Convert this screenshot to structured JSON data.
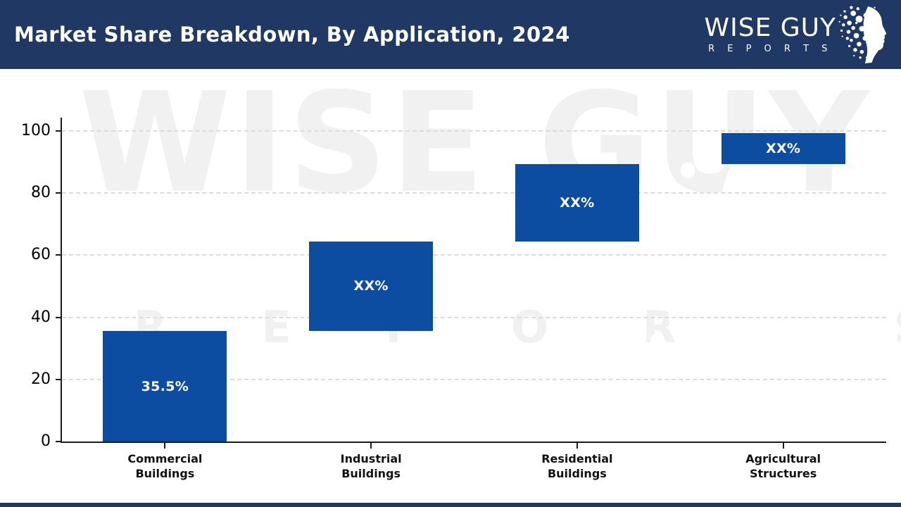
{
  "header": {
    "title": "Market Share Breakdown, By Application, 2024",
    "logo": {
      "line1": "WISE GUY",
      "line2": "R E P O R T S"
    }
  },
  "watermark": {
    "line1": "WISE GUY",
    "line2": "R E P O R T S"
  },
  "colors": {
    "header_navy": "#1F3864",
    "bar_blue": "#0C4DA2",
    "gridline": "#dcdcdc",
    "axis": "#1a1a1a",
    "watermark_grey": "#f1f1f1",
    "bar_label_text": "#ffffff"
  },
  "chart_data": {
    "type": "bar",
    "subtype": "waterfall-floating-bars",
    "title": "Market Share Breakdown, By Application, 2024",
    "xlabel": "",
    "ylabel": "",
    "ylim": [
      0,
      104
    ],
    "yticks": [
      0,
      20,
      40,
      60,
      80,
      100
    ],
    "grid": "horizontal-dashed",
    "legend": "none",
    "categories": [
      "Commercial\nBuildings",
      "Industrial\nBuildings",
      "Residential\nBuildings",
      "Agricultural\nStructures"
    ],
    "segments": [
      {
        "category": "Commercial\nBuildings",
        "start": 0,
        "end": 35.5,
        "label": "35.5%"
      },
      {
        "category": "Industrial\nBuildings",
        "start": 35.5,
        "end": 64.5,
        "label": "XX%"
      },
      {
        "category": "Residential\nBuildings",
        "start": 64.5,
        "end": 89.3,
        "label": "XX%"
      },
      {
        "category": "Agricultural\nStructures",
        "start": 89.3,
        "end": 99.4,
        "label": "XX%"
      }
    ]
  }
}
